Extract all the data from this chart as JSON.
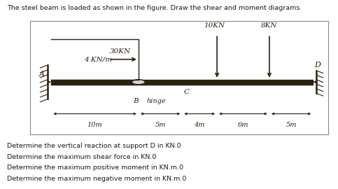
{
  "title": "The steel beam is loaded as shown in the figure. Draw the shear and moment diagrams.",
  "background_color": "#d8d4cc",
  "beam_color": "#2a2010",
  "text_color": "#1a1a1a",
  "questions": [
    "Determine the vertical reaction at support D in KN.0",
    "Determine the maximum shear force in KN.0",
    "Determine the maximum positive moment in KN.m.0",
    "Determine the maximum negative moment in KN.m.0"
  ],
  "dist_load_label": "4 KN/m",
  "horiz_force_label": "30KN",
  "load1_label": "10KN",
  "load2_label": "8KN",
  "seg_AB": "10m",
  "seg_BC1": "5m",
  "seg_C": "4m",
  "seg_mid": "6m",
  "seg_right": "5m"
}
